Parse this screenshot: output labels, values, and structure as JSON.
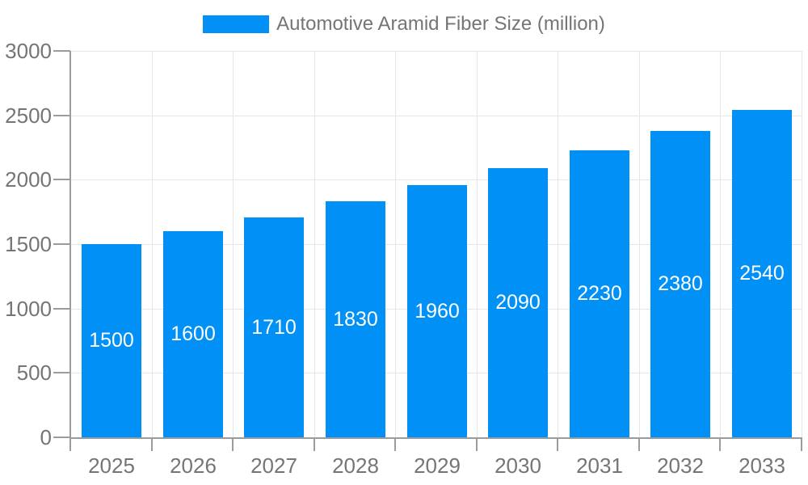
{
  "chart_data": {
    "type": "bar",
    "title": "Automotive Aramid Fiber Size (million)",
    "categories": [
      "2025",
      "2026",
      "2027",
      "2028",
      "2029",
      "2030",
      "2031",
      "2032",
      "2033"
    ],
    "values": [
      1500,
      1600,
      1710,
      1830,
      1960,
      2090,
      2230,
      2380,
      2540
    ],
    "xlabel": "",
    "ylabel": "",
    "ylim": [
      0,
      3000
    ],
    "ytick_step": 500,
    "grid": true,
    "legend_position": "top",
    "value_labels": "inside-center-white",
    "bar_color": "#0190f6",
    "value_label_color": "#ffffff",
    "axis_line_color": "#9b9b9b",
    "gridline_color": "#e6e6e6",
    "tick_label_color": "#757575"
  }
}
